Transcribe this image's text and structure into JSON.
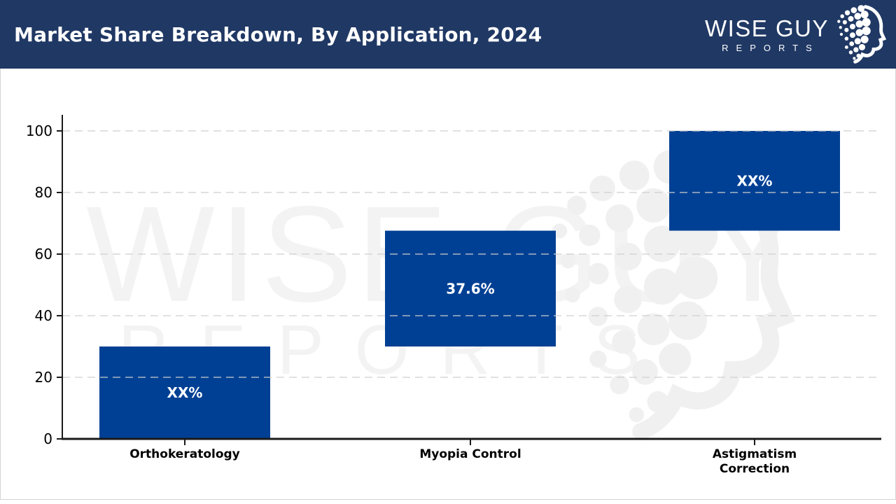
{
  "header": {
    "title": "Market Share Breakdown, By Application, 2024",
    "logo_line1": "WISE GUY",
    "logo_line2": "REPORTS"
  },
  "watermark": {
    "line1": "WISE GUY",
    "line2": "REPORTS"
  },
  "chart_data": {
    "type": "bar",
    "variant": "floating-segment-waterfall",
    "title": "Market Share Breakdown, By Application, 2024",
    "categories": [
      "Orthokeratology",
      "Myopia Control",
      "Astigmatism Correction"
    ],
    "categories_display": [
      [
        "Orthokeratology"
      ],
      [
        "Myopia Control"
      ],
      [
        "Astigmatism",
        "Correction"
      ]
    ],
    "segments": [
      {
        "category": "Orthokeratology",
        "start": 0,
        "end": 30,
        "label": "XX%"
      },
      {
        "category": "Myopia Control",
        "start": 30,
        "end": 67.6,
        "label": "37.6%"
      },
      {
        "category": "Astigmatism Correction",
        "start": 67.6,
        "end": 100,
        "label": "XX%"
      }
    ],
    "ylim": [
      0,
      100
    ],
    "yticks": [
      0,
      20,
      40,
      60,
      80,
      100
    ],
    "xlabel": "",
    "ylabel": "",
    "grid": "dashed-horizontal",
    "legend": "none",
    "colors": {
      "bar": "#004094",
      "bar_label": "#ffffff",
      "grid": "#cfcfcf",
      "axis": "#1a1a1a",
      "tick_label": "#000000",
      "header_bg": "#203864",
      "watermark": "#f3f3f3"
    }
  }
}
